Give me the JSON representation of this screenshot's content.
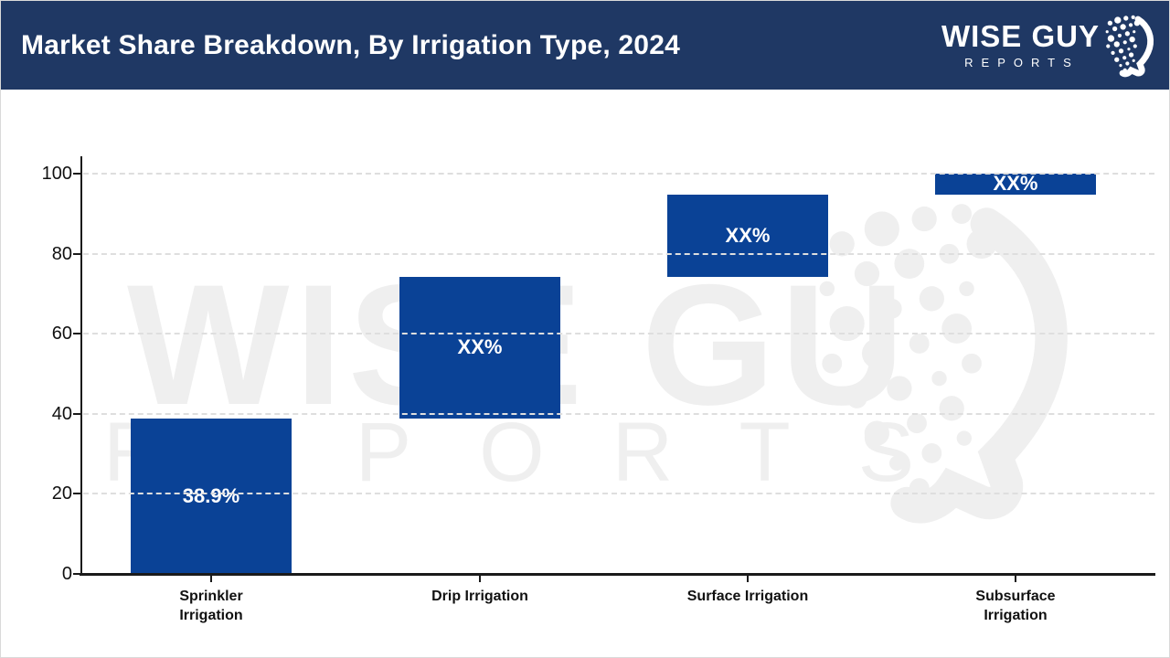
{
  "header": {
    "title": "Market Share Breakdown, By Irrigation Type, 2024",
    "logo": {
      "wordmark": "WISE GUY",
      "subtext": "REPORTS"
    }
  },
  "watermark": {
    "line1": "WISE GU",
    "line2": "REPORTS"
  },
  "colors": {
    "header_bg": "#1f3864",
    "bar": "#0a4296",
    "bar_label": "#ffffff",
    "grid": "#dedede",
    "axis": "#1a1a1a",
    "tick_label": "#111111",
    "watermark": "#efefef"
  },
  "chart_data": {
    "type": "bar",
    "subtype": "waterfall",
    "title": "Market Share Breakdown, By Irrigation Type, 2024",
    "unit": "%",
    "categories": [
      "Sprinkler\nIrrigation",
      "Drip Irrigation",
      "Surface Irrigation",
      "Subsurface\nIrrigation"
    ],
    "segments": [
      {
        "category": "Sprinkler\nIrrigation",
        "start": 0,
        "end": 38.9,
        "label": "38.9%"
      },
      {
        "category": "Drip Irrigation",
        "start": 38.9,
        "end": 74.2,
        "label": "XX%"
      },
      {
        "category": "Surface Irrigation",
        "start": 74.2,
        "end": 94.8,
        "label": "XX%"
      },
      {
        "category": "Subsurface\nIrrigation",
        "start": 94.8,
        "end": 100,
        "label": "XX%"
      }
    ],
    "yticks": [
      0,
      20,
      40,
      60,
      80,
      100
    ],
    "ylim": [
      0,
      104
    ],
    "xlabel": "",
    "ylabel": "",
    "grid": "horizontal-dashed",
    "legend": "none"
  }
}
